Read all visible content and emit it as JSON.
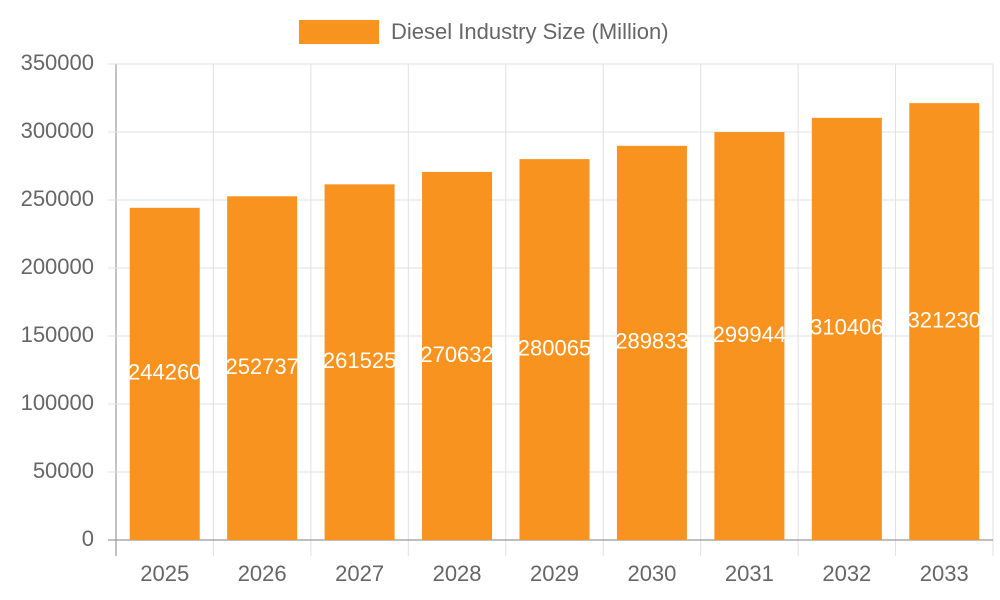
{
  "chart_data": {
    "type": "bar",
    "categories": [
      "2025",
      "2026",
      "2027",
      "2028",
      "2029",
      "2030",
      "2031",
      "2032",
      "2033"
    ],
    "series": [
      {
        "name": "Diesel Industry Size (Million)",
        "color": "#f7931e",
        "values": [
          244260,
          252737,
          261525,
          270632,
          280065,
          289833,
          299944,
          310406,
          321230
        ]
      }
    ],
    "ylim": [
      0,
      350000
    ],
    "yticks": [
      0,
      50000,
      100000,
      150000,
      200000,
      250000,
      300000,
      350000
    ],
    "grid": true,
    "legend": "top",
    "data_labels": true
  }
}
